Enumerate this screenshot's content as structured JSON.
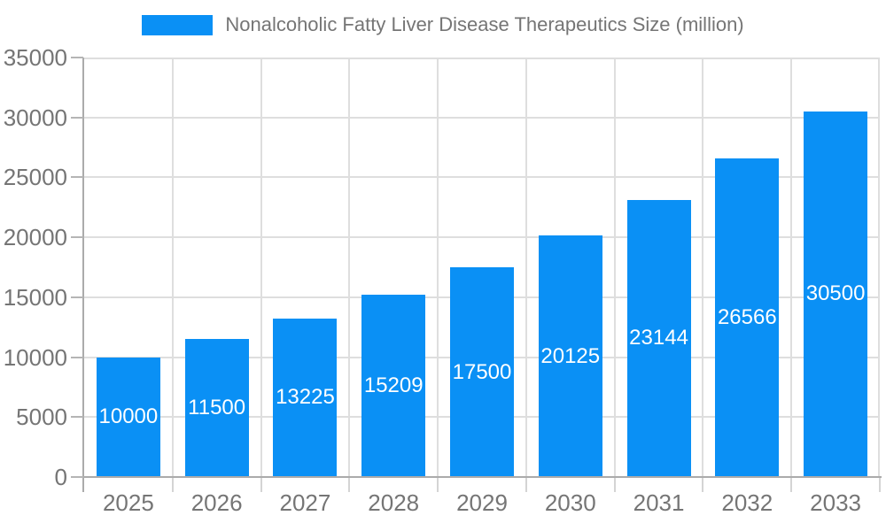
{
  "chart_data": {
    "type": "bar",
    "title": "Nonalcoholic Fatty Liver Disease Therapeutics Size (million)",
    "categories": [
      "2025",
      "2026",
      "2027",
      "2028",
      "2029",
      "2030",
      "2031",
      "2032",
      "2033"
    ],
    "values": [
      10000,
      11500,
      13225,
      15209,
      17500,
      20125,
      23144,
      26566,
      30500
    ],
    "series": [
      {
        "name": "Nonalcoholic Fatty Liver Disease Therapeutics Size (million)",
        "values": [
          10000,
          11500,
          13225,
          15209,
          17500,
          20125,
          23144,
          26566,
          30500
        ]
      }
    ],
    "xlabel": "",
    "ylabel": "",
    "ylim": [
      0,
      35000
    ],
    "yticks": [
      0,
      5000,
      10000,
      15000,
      20000,
      25000,
      30000,
      35000
    ],
    "grid": true,
    "legend_position": "top-center",
    "bar_color": "#0a90f5",
    "bar_label_color": "#ffffff",
    "axis_text_color": "#757575",
    "gridline_color": "#dedede",
    "axis_line_color": "#ababab"
  }
}
